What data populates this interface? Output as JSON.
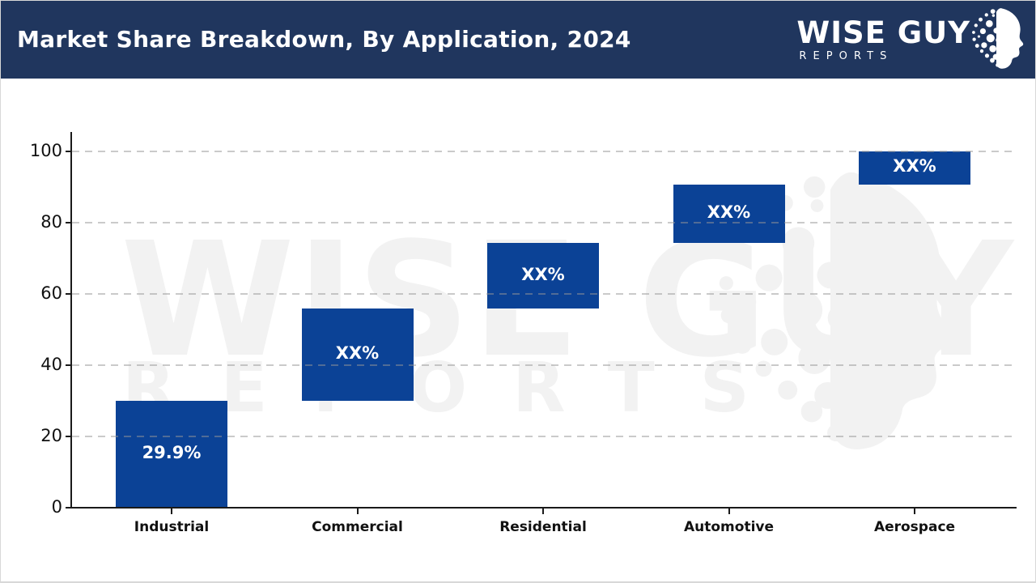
{
  "header": {
    "title": "Market Share Breakdown, By Application, 2024",
    "logo": {
      "line1": "WISE GUY",
      "line2": "REPORTS"
    },
    "bg_color": "#20365e"
  },
  "watermark": {
    "line1": "WISE GUY",
    "line2": "REPORTS",
    "color": "#f2f2f2"
  },
  "colors": {
    "bar": "#0b4296",
    "axis": "#1a1a1a",
    "grid": "#c9c9c9",
    "page_border": "#d8d8d8",
    "title_text": "#ffffff"
  },
  "chart_data": {
    "type": "bar",
    "subtype": "waterfall-floating-bars",
    "title": "Market Share Breakdown, By Application, 2024",
    "xlabel": "",
    "ylabel": "",
    "categories": [
      "Industrial",
      "Commercial",
      "Residential",
      "Automotive",
      "Aerospace"
    ],
    "segments": [
      {
        "category": "Industrial",
        "start": 0,
        "end": 29.9,
        "label": "29.9%"
      },
      {
        "category": "Commercial",
        "start": 29.9,
        "end": 55.9,
        "label": "XX%"
      },
      {
        "category": "Residential",
        "start": 55.9,
        "end": 74.3,
        "label": "XX%"
      },
      {
        "category": "Automotive",
        "start": 74.3,
        "end": 90.7,
        "label": "XX%"
      },
      {
        "category": "Aerospace",
        "start": 90.7,
        "end": 100.0,
        "label": "XX%"
      }
    ],
    "y_ticks": [
      0,
      20,
      40,
      60,
      80,
      100
    ],
    "ylim": [
      0,
      106
    ],
    "grid": "horizontal-dashed",
    "legend": "none"
  }
}
